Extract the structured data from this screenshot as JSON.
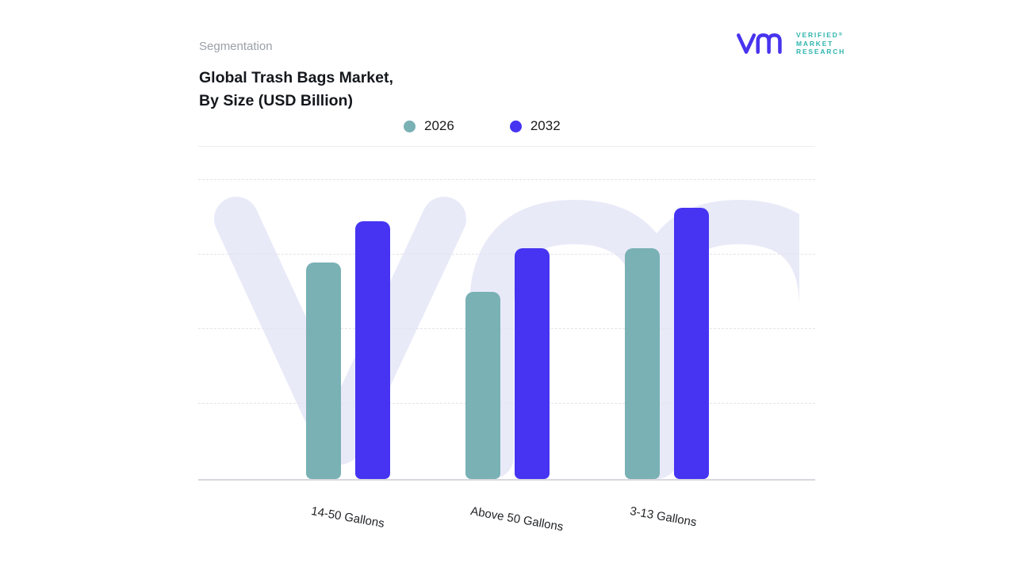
{
  "header": {
    "eyebrow": "Segmentation",
    "title_line1": "Global Trash Bags Market,",
    "title_line2": "By Size (USD Billion)"
  },
  "brand": {
    "name_line1": "VERIFIED",
    "name_line2": "MARKET",
    "name_line3": "RESEARCH",
    "registered_mark": "®",
    "mark_color": "#4733ee",
    "text_color": "#2fb5ae"
  },
  "watermark": {
    "icon": "vm-monogram-watermark",
    "color": "#e9eaf8"
  },
  "chart_data": {
    "type": "bar",
    "title": "Global Trash Bags Market, By Size (USD Billion)",
    "categories": [
      "14-50 Gallons",
      "Above 50 Gallons",
      "3-13 Gallons"
    ],
    "series": [
      {
        "name": "2026",
        "color": "#79b1b5",
        "values": [
          8.0,
          6.9,
          8.5
        ]
      },
      {
        "name": "2032",
        "color": "#4634f2",
        "values": [
          9.5,
          8.5,
          10.0
        ]
      }
    ],
    "ylim": [
      0,
      11
    ],
    "y_axis_labels_visible": false,
    "grid": "horizontal-dashed",
    "legend_position": "top-center"
  }
}
